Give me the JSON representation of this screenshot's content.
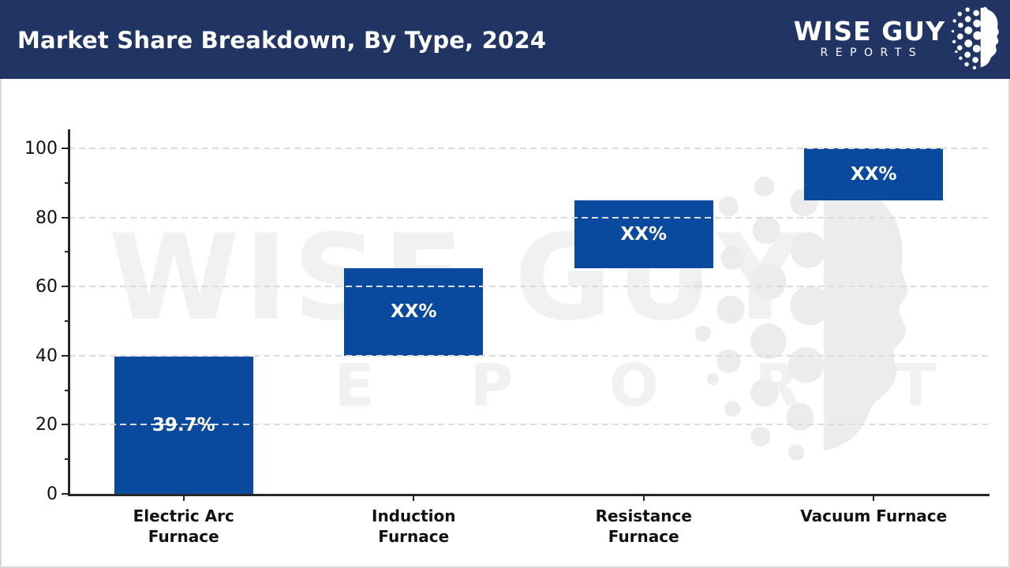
{
  "header": {
    "title": "Market Share Breakdown, By Type, 2024",
    "logo": {
      "line1": "WISE GUY",
      "line2": "REPORTS"
    }
  },
  "watermark": {
    "line1": "WISE GUY",
    "line2": "R E P O R T S"
  },
  "colors": {
    "header_bg": "#213564",
    "title_text": "#ffffff",
    "bar": "#0a4a9e",
    "bar_label": "#ffffff",
    "grid": "#dcdcdc",
    "axis": "#262626",
    "watermark": "#f1f1f1",
    "watermark_face": "#ececec",
    "border": "#d9d9d9"
  },
  "chart_data": {
    "type": "bar",
    "subtype": "waterfall",
    "title": "Market Share Breakdown, By Type, 2024",
    "categories": [
      "Electric Arc Furnace",
      "Induction Furnace",
      "Resistance Furnace",
      "Vacuum Furnace"
    ],
    "bars": [
      {
        "category": "Electric Arc Furnace",
        "start": 0,
        "end": 39.7,
        "label": "39.7%"
      },
      {
        "category": "Induction Furnace",
        "start": 40,
        "end": 65.4,
        "label": "XX%"
      },
      {
        "category": "Resistance Furnace",
        "start": 65.4,
        "end": 85,
        "label": "XX%"
      },
      {
        "category": "Vacuum Furnace",
        "start": 85,
        "end": 100,
        "label": "XX%"
      }
    ],
    "y_ticks": [
      0,
      20,
      40,
      60,
      80,
      100
    ],
    "minor_tick_step": 10,
    "ylim": [
      0,
      100
    ],
    "xlabel": "",
    "ylabel": "",
    "grid": "horizontal-dashed-over-bars",
    "legend": "none"
  }
}
